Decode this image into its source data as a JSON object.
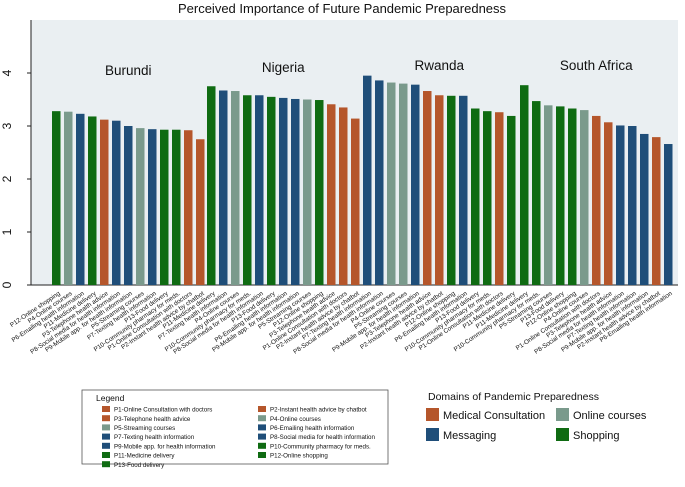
{
  "chart_data": {
    "type": "bar",
    "title": "Perceived Importance of Future Pandemic Preparedness",
    "ylim": [
      0,
      5
    ],
    "yticks": [
      0,
      1,
      2,
      3,
      4
    ],
    "grid": false,
    "domain_colors": {
      "medical": "#b5562b",
      "online": "#7a9a8c",
      "messaging": "#1f4e79",
      "shopping": "#0f6b12"
    },
    "panels": [
      {
        "country": "Burundi",
        "bars": [
          {
            "label": "P12-Online shopping",
            "value": 3.28,
            "domain": "shopping"
          },
          {
            "label": "P4-Online courses",
            "value": 3.27,
            "domain": "online"
          },
          {
            "label": "P6-Emailing health information",
            "value": 3.23,
            "domain": "messaging"
          },
          {
            "label": "P11-Medicine delivery",
            "value": 3.18,
            "domain": "shopping"
          },
          {
            "label": "P3-Telephone health advice",
            "value": 3.12,
            "domain": "medical"
          },
          {
            "label": "P8-Social media for health information",
            "value": 3.1,
            "domain": "messaging"
          },
          {
            "label": "P9-Mobile app. for health information",
            "value": 3.0,
            "domain": "messaging"
          },
          {
            "label": "P5-Streaming courses",
            "value": 2.96,
            "domain": "online"
          },
          {
            "label": "P7-Texting health information",
            "value": 2.94,
            "domain": "messaging"
          },
          {
            "label": "P13-Food delivery",
            "value": 2.93,
            "domain": "shopping"
          },
          {
            "label": "P10-Community pharmacy for meds.",
            "value": 2.93,
            "domain": "shopping"
          },
          {
            "label": "P1-Online Consultation with doctors",
            "value": 2.92,
            "domain": "medical"
          },
          {
            "label": "P2-Instant health advice by chatbot",
            "value": 2.75,
            "domain": "medical"
          }
        ]
      },
      {
        "country": "Nigeria",
        "bars": [
          {
            "label": "P11-Medicine delivery",
            "value": 3.75,
            "domain": "shopping"
          },
          {
            "label": "P7-Texting health information",
            "value": 3.67,
            "domain": "messaging"
          },
          {
            "label": "P4-Online courses",
            "value": 3.66,
            "domain": "online"
          },
          {
            "label": "P10-Community pharmacy for meds.",
            "value": 3.58,
            "domain": "shopping"
          },
          {
            "label": "P8-Social media for health information",
            "value": 3.58,
            "domain": "messaging"
          },
          {
            "label": "P13-Food delivery",
            "value": 3.55,
            "domain": "shopping"
          },
          {
            "label": "P6-Emailing health information",
            "value": 3.53,
            "domain": "messaging"
          },
          {
            "label": "P9-Mobile app. for health information",
            "value": 3.51,
            "domain": "messaging"
          },
          {
            "label": "P5-Streaming courses",
            "value": 3.5,
            "domain": "online"
          },
          {
            "label": "P12-Online shopping",
            "value": 3.49,
            "domain": "shopping"
          },
          {
            "label": "P3-Telephone health advice",
            "value": 3.41,
            "domain": "medical"
          },
          {
            "label": "P1-Online Consultation with doctors",
            "value": 3.35,
            "domain": "medical"
          },
          {
            "label": "P2-Instant health advice by chatbot",
            "value": 3.14,
            "domain": "medical"
          }
        ]
      },
      {
        "country": "Rwanda",
        "bars": [
          {
            "label": "P7-Texting health information",
            "value": 3.95,
            "domain": "messaging"
          },
          {
            "label": "P8-Social media for health information",
            "value": 3.86,
            "domain": "messaging"
          },
          {
            "label": "P4-Online courses",
            "value": 3.82,
            "domain": "online"
          },
          {
            "label": "P5-Streaming courses",
            "value": 3.8,
            "domain": "online"
          },
          {
            "label": "P9-Mobile app. for health information",
            "value": 3.78,
            "domain": "messaging"
          },
          {
            "label": "P3-Telephone health advice",
            "value": 3.66,
            "domain": "medical"
          },
          {
            "label": "P2-Instant health advice by chatbot",
            "value": 3.58,
            "domain": "medical"
          },
          {
            "label": "P12-Online shopping",
            "value": 3.57,
            "domain": "shopping"
          },
          {
            "label": "P6-Emailing health information",
            "value": 3.57,
            "domain": "messaging"
          },
          {
            "label": "P13-Food delivery",
            "value": 3.33,
            "domain": "shopping"
          },
          {
            "label": "P10-Community pharmacy for meds.",
            "value": 3.28,
            "domain": "shopping"
          },
          {
            "label": "P1-Online Consultation with doctors",
            "value": 3.26,
            "domain": "medical"
          },
          {
            "label": "P11-Medicine delivery",
            "value": 3.19,
            "domain": "shopping"
          }
        ]
      },
      {
        "country": "South Africa",
        "bars": [
          {
            "label": "P11-Medicine delivery",
            "value": 3.77,
            "domain": "shopping"
          },
          {
            "label": "P10-Community pharmacy for meds.",
            "value": 3.47,
            "domain": "shopping"
          },
          {
            "label": "P5-Streaming courses",
            "value": 3.39,
            "domain": "online"
          },
          {
            "label": "P13-Food delivery",
            "value": 3.37,
            "domain": "shopping"
          },
          {
            "label": "P12-Online shopping",
            "value": 3.33,
            "domain": "shopping"
          },
          {
            "label": "P4-Online courses",
            "value": 3.3,
            "domain": "online"
          },
          {
            "label": "P1-Online Consultation with doctors",
            "value": 3.19,
            "domain": "medical"
          },
          {
            "label": "P3-Telephone health advice",
            "value": 3.07,
            "domain": "medical"
          },
          {
            "label": "P8-Social media for health information",
            "value": 3.01,
            "domain": "messaging"
          },
          {
            "label": "P7-Texting health information",
            "value": 3.0,
            "domain": "messaging"
          },
          {
            "label": "P9-Mobile app. for health information",
            "value": 2.85,
            "domain": "messaging"
          },
          {
            "label": "P2-Instant health advice by chatbot",
            "value": 2.79,
            "domain": "medical"
          },
          {
            "label": "P6-Emailing health information",
            "value": 2.66,
            "domain": "messaging"
          }
        ]
      }
    ],
    "legend": {
      "title": "Legend",
      "items": [
        {
          "label": "P1-Online Consultation with doctors",
          "domain": "medical"
        },
        {
          "label": "P2-Instant health advice by chatbot",
          "domain": "medical"
        },
        {
          "label": "P3-Telephone health advice",
          "domain": "medical"
        },
        {
          "label": "P4-Online courses",
          "domain": "online"
        },
        {
          "label": "P5-Streaming courses",
          "domain": "online"
        },
        {
          "label": "P6-Emailing health information",
          "domain": "messaging"
        },
        {
          "label": "P7-Texting health information",
          "domain": "messaging"
        },
        {
          "label": "P8-Social media for health information",
          "domain": "messaging"
        },
        {
          "label": "P9-Mobile app. for health information",
          "domain": "messaging"
        },
        {
          "label": "P10-Community pharmacy for meds.",
          "domain": "shopping"
        },
        {
          "label": "P11-Medicine delivery",
          "domain": "shopping"
        },
        {
          "label": "P12-Online shopping",
          "domain": "shopping"
        },
        {
          "label": "P13-Food delivery",
          "domain": "shopping"
        }
      ]
    },
    "domains_legend": {
      "title": "Domains of Pandemic Preparedness",
      "items": [
        {
          "label": "Medical Consultation",
          "domain": "medical"
        },
        {
          "label": "Online courses",
          "domain": "online"
        },
        {
          "label": "Messaging",
          "domain": "messaging"
        },
        {
          "label": "Shopping",
          "domain": "shopping"
        }
      ]
    }
  }
}
